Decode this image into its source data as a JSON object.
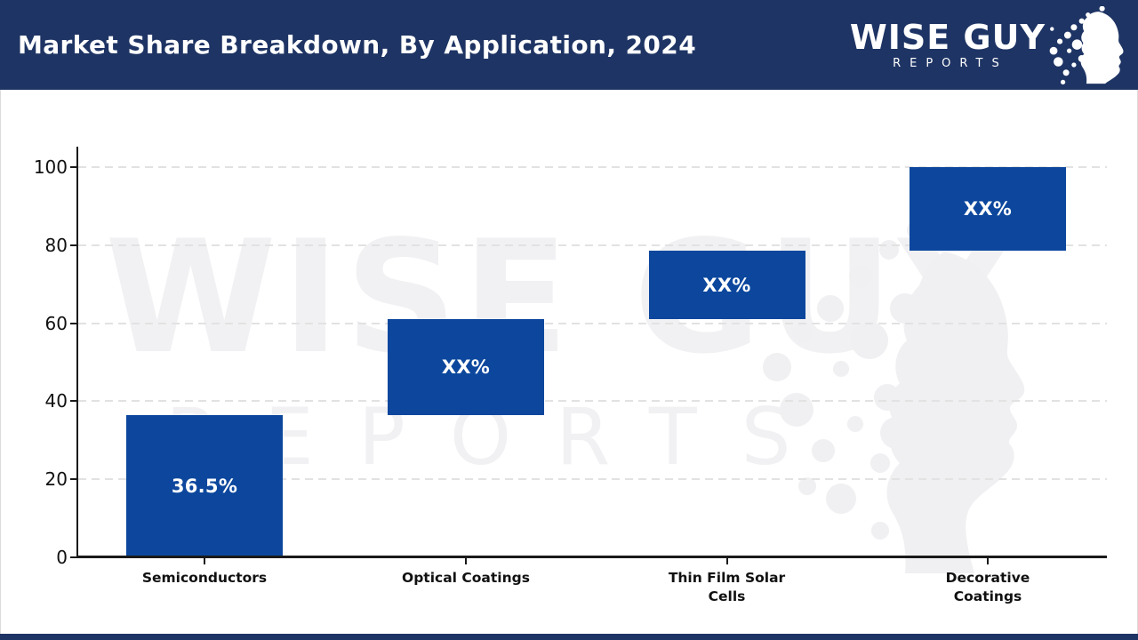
{
  "header": {
    "title": "Market Share Breakdown, By Application, 2024",
    "brand": {
      "name": "WISE GUY",
      "sub": "REPORTS"
    }
  },
  "watermark": {
    "line1": "WISE GUY",
    "line2": "REPORTS"
  },
  "chart_data": {
    "type": "bar",
    "subtype": "floating-segment-waterfall",
    "title": "Market Share Breakdown, By Application, 2024",
    "unit": "%",
    "categories": [
      "Semiconductors",
      "Optical Coatings",
      "Thin Film Solar Cells",
      "Decorative Coatings"
    ],
    "categories_lines": [
      [
        "Semiconductors"
      ],
      [
        "Optical Coatings"
      ],
      [
        "Thin Film Solar",
        "Cells"
      ],
      [
        "Decorative",
        "Coatings"
      ]
    ],
    "series": [
      {
        "name": "Market Share",
        "segments": [
          {
            "category": "Semiconductors",
            "start": 0,
            "end": 36.5,
            "label": "36.5%"
          },
          {
            "category": "Optical Coatings",
            "start": 36.5,
            "end": 61,
            "label": "XX%"
          },
          {
            "category": "Thin Film Solar Cells",
            "start": 61,
            "end": 78.5,
            "label": "XX%"
          },
          {
            "category": "Decorative Coatings",
            "start": 78.5,
            "end": 100,
            "label": "XX%"
          }
        ]
      }
    ],
    "ylim": [
      0,
      100
    ],
    "yticks": [
      0,
      20,
      40,
      60,
      80,
      100
    ],
    "xlabel": "",
    "ylabel": "",
    "legend": "none",
    "grid": {
      "horizontal": true,
      "style": "dashed"
    },
    "colors": {
      "bar": "#0c479d",
      "bar_label": "#ffffff",
      "header_bg": "#1e3464",
      "grid": "#e2e2e2",
      "axis": "#1a1a1a",
      "watermark": "#f1f1f4"
    }
  }
}
